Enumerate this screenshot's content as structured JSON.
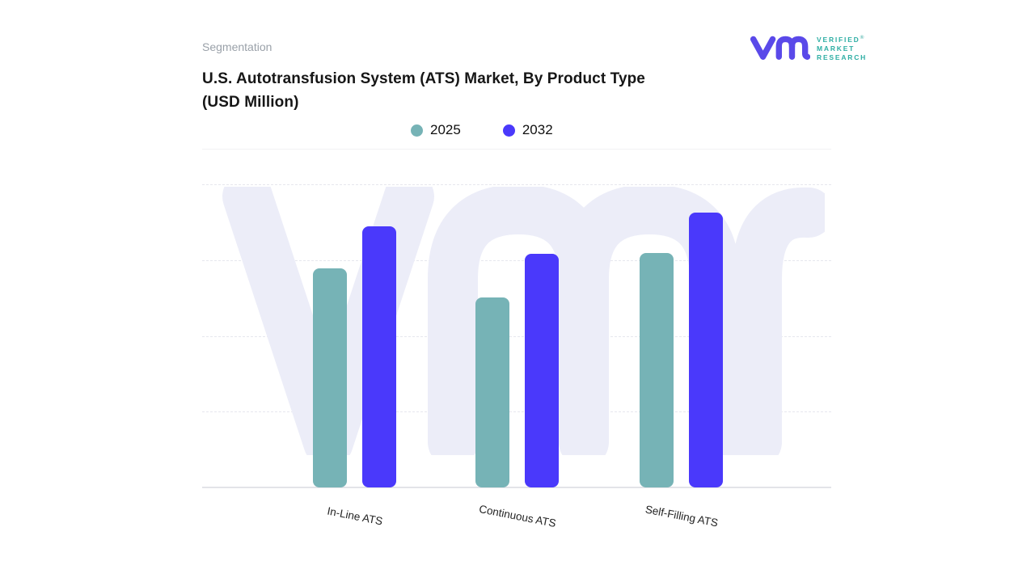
{
  "header": {
    "eyebrow": "Segmentation",
    "title_line1": "U.S. Autotransfusion System (ATS) Market, By Product Type",
    "title_line2": "(USD Million)"
  },
  "brand": {
    "logo_mark": "vm-monogram",
    "lines": [
      "VERIFIED",
      "MARKET",
      "RESEARCH"
    ],
    "registered": "®",
    "mark_color": "#5a49e9",
    "text_color": "#2eaea4"
  },
  "legend": {
    "items": [
      {
        "label": "2025",
        "color": "#76b3b6"
      },
      {
        "label": "2032",
        "color": "#4a39fb"
      }
    ]
  },
  "chart_data": {
    "type": "bar",
    "title": "U.S. Autotransfusion System (ATS) Market, By Product Type (USD Million)",
    "categories": [
      "In-Line ATS",
      "Continuous ATS",
      "Self-Filling ATS"
    ],
    "series": [
      {
        "name": "2025",
        "color": "#76b3b6",
        "values": [
          2.89,
          2.51,
          3.09
        ]
      },
      {
        "name": "2032",
        "color": "#4a39fb",
        "values": [
          3.45,
          3.08,
          3.63
        ]
      }
    ],
    "xlabel": "",
    "ylabel": "",
    "ylim": [
      0,
      4
    ],
    "y_axis_labels_visible": false,
    "grid": "horizontal-dashed",
    "legend_position": "top",
    "watermark": "vmr",
    "colors": {
      "background": "#ffffff",
      "gridline": "#e6e7ee",
      "baseline": "#e3e4e8",
      "watermark": "#ecedf8"
    }
  }
}
